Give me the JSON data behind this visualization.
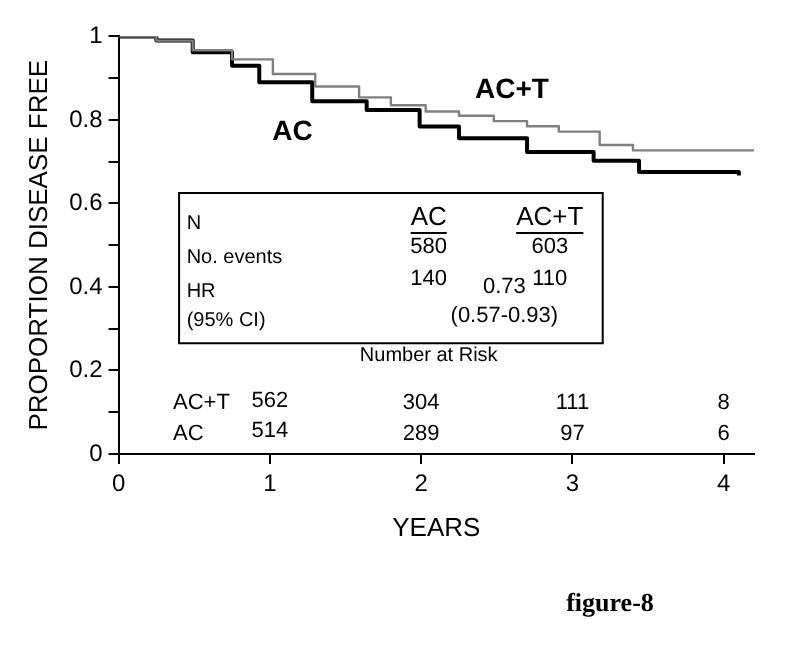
{
  "chart_data": {
    "type": "step",
    "xlabel": "YEARS",
    "ylabel": "PROPORTION DISEASE FREE",
    "xlim": [
      0,
      4.2
    ],
    "xticks": [
      0,
      1,
      2,
      3,
      4
    ],
    "ylim": [
      0,
      1
    ],
    "yticks": [
      0,
      {
        "value": 0.1,
        "label": null
      },
      0.2,
      {
        "value": 0.3,
        "label": null
      },
      0.4,
      {
        "value": 0.5,
        "label": null
      },
      0.6,
      {
        "value": 0.7,
        "label": null
      },
      0.8,
      {
        "value": 0.9,
        "label": null
      },
      1
    ],
    "grid": false,
    "legend": false,
    "marker": "none",
    "series": [
      {
        "name": "AC+T",
        "color": "#808080",
        "line_style": "solid",
        "x": [
          0,
          0.25,
          0.49,
          0.75,
          1.02,
          1.3,
          1.59,
          1.8,
          2.03,
          2.25,
          2.48,
          2.7,
          2.91,
          3.18,
          3.4,
          4.2
        ],
        "values": [
          1,
          0.99,
          0.967,
          0.945,
          0.91,
          0.88,
          0.854,
          0.835,
          0.82,
          0.81,
          0.797,
          0.785,
          0.772,
          0.74,
          0.727,
          0.727
        ]
      },
      {
        "name": "AC",
        "color": "#000000",
        "line_style": "solid",
        "x": [
          0,
          0.25,
          0.49,
          0.75,
          0.93,
          1.28,
          1.64,
          1.99,
          2.25,
          2.7,
          3.14,
          3.44,
          4.1
        ],
        "values": [
          1,
          0.99,
          0.962,
          0.93,
          0.89,
          0.845,
          0.824,
          0.784,
          0.756,
          0.723,
          0.702,
          0.675,
          0.667
        ]
      }
    ],
    "annotations": [
      "N",
      "No. events",
      "HR",
      "(95% CI)",
      "AC",
      "AC+T",
      "580",
      "603",
      "140",
      "110",
      "0.73",
      "(0.57-0.93)",
      "Number at Risk",
      "AC+T",
      "562",
      "304",
      "111",
      "8",
      "AC",
      "514",
      "289",
      "97",
      "6",
      "figure-8"
    ]
  }
}
